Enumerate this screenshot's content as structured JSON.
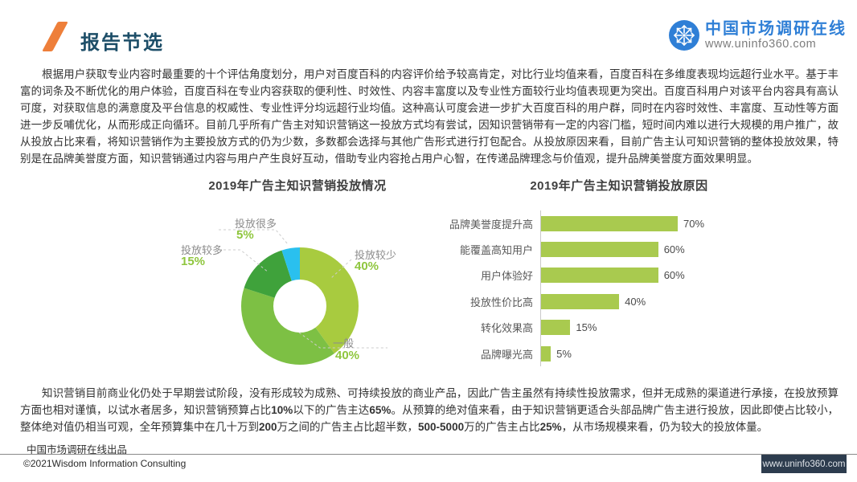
{
  "header": {
    "title": "报告节选"
  },
  "logo": {
    "name": "中国市场调研在线",
    "url": "www.uninfo360.com",
    "icon": "snowflake-compass-icon",
    "brand_color": "#2f7fd6"
  },
  "intro_paragraph": "根据用户获取专业内容时最重要的十个评估角度划分，用户对百度百科的内容评价给予较高肯定，对比行业均值来看，百度百科在多维度表现均远超行业水平。基于丰富的词条及不断优化的用户体验，百度百科在专业内容获取的便利性、时效性、内容丰富度以及专业性方面较行业均值表现更为突出。百度百科用户对该平台内容具有高认可度，对获取信息的满意度及平台信息的权威性、专业性评分均远超行业均值。这种高认可度会进一步扩大百度百科的用户群，同时在内容时效性、丰富度、互动性等方面进一步反哺优化，从而形成正向循环。目前几乎所有广告主对知识营销这一投放方式均有尝试，因知识营销带有一定的内容门槛，短时间内难以进行大规模的用户推广，故从投放占比来看，将知识营销作为主要投放方式的仍为少数，多数都会选择与其他广告形式进行打包配合。从投放原因来看，目前广告主认可知识营销的整体投放效果，特别是在品牌美誉度方面，知识营销通过内容与用户产生良好互动，借助专业内容抢占用户心智，在传递品牌理念与价值观，提升品牌美誉度方面效果明显。",
  "chart_data": [
    {
      "type": "pie",
      "subtype": "donut",
      "title": "2019年广告主知识营销投放情况",
      "labels": [
        "投放较少",
        "一般",
        "投放较多",
        "投放很多"
      ],
      "values": [
        40,
        40,
        15,
        5
      ],
      "pct_labels": [
        "40%",
        "40%",
        "15%",
        "5%"
      ],
      "colors": [
        "#a8cb3f",
        "#7dc044",
        "#3fa23b",
        "#2ac0ee"
      ],
      "start_angle_deg": 0,
      "direction": "clockwise",
      "legend_position": "outside-callouts"
    },
    {
      "type": "bar",
      "orientation": "horizontal",
      "title": "2019年广告主知识营销投放原因",
      "categories": [
        "品牌美誉度提升高",
        "能覆盖高知用户",
        "用户体验好",
        "投放性价比高",
        "转化效果高",
        "品牌曝光高"
      ],
      "values": [
        70,
        60,
        60,
        40,
        15,
        5
      ],
      "value_labels": [
        "70%",
        "60%",
        "60%",
        "40%",
        "15%",
        "5%"
      ],
      "bar_color": "#a9ca4f",
      "xlim": [
        0,
        75
      ],
      "grid": false
    }
  ],
  "closing_runs": [
    {
      "t": "知识营销目前商业化仍处于早期尝试阶段，没有形成较为成熟、可持续投放的商业产品，因此广告主虽然有持续性投放需求，但并无成熟的渠道进行承接，在投放预算方面也相对谨慎，以试水者居多，知识营销预算占比"
    },
    {
      "t": "10%",
      "b": true
    },
    {
      "t": "以下的广告主达"
    },
    {
      "t": "65%",
      "b": true
    },
    {
      "t": "。从预算的绝对值来看，由于知识营销更适合头部品牌广告主进行投放，因此即使占比较小，整体绝对值仍相当可观，全年预算集中在几十万到"
    },
    {
      "t": "200",
      "b": true
    },
    {
      "t": "万之间的广告主占比超半数，"
    },
    {
      "t": "500-5000",
      "b": true
    },
    {
      "t": "万的广告主占比"
    },
    {
      "t": "25%",
      "b": true
    },
    {
      "t": "，从市场规模来看，仍为较大的投放体量。"
    }
  ],
  "footer": {
    "brand_line": "中国市场调研在线出品",
    "copyright": "©2021Wisdom Information Consulting",
    "badge_url": "www.uninfo360.com",
    "badge_color": "#2d3c4e"
  },
  "accent_colors": {
    "slash_orange": "#ee7f3a",
    "title_navy": "#1d4e68",
    "pct_green": "#8fc63e"
  }
}
